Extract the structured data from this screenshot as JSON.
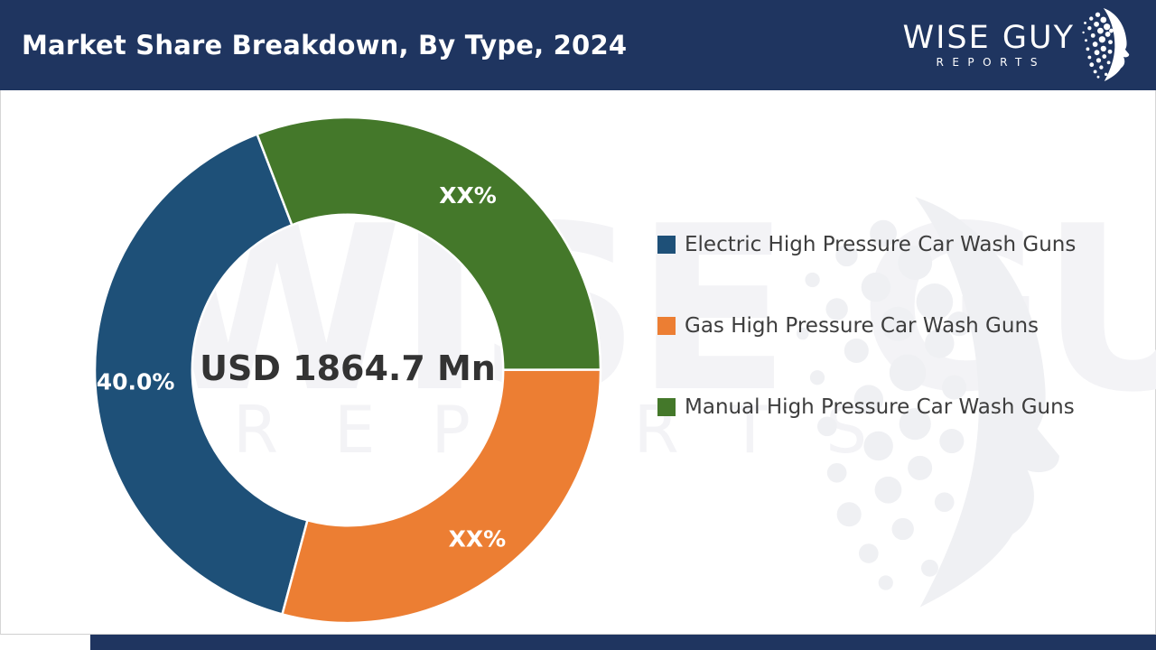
{
  "header": {
    "title": "Market Share Breakdown, By Type, 2024",
    "logo": {
      "line1": "WISE GUY",
      "line2": "REPORTS",
      "icon": "face-profile-icon"
    }
  },
  "watermark": {
    "line1": "WISE GUY",
    "line2": "REPORTS",
    "icon": "face-profile-icon"
  },
  "chart_data": {
    "type": "pie",
    "subtype": "donut",
    "title": "Market Share Breakdown, By Type, 2024",
    "center_label": "USD 1864.7 Mn",
    "start_angle": 111,
    "counterclockwise": true,
    "inner_radius_ratio": 0.615,
    "legend_position": "right",
    "series": [
      {
        "name": "Electric High Pressure Car Wash Guns",
        "value": 40.0,
        "display_label": "40.0%",
        "color": "#1e5078"
      },
      {
        "name": "Gas High Pressure Car Wash Guns",
        "value": 29.2,
        "display_label": "XX%",
        "color": "#ec7e33"
      },
      {
        "name": "Manual High Pressure Car Wash Guns",
        "value": 30.8,
        "display_label": "XX%",
        "color": "#44782a"
      }
    ]
  },
  "colors": {
    "header_bg": "#1f3560",
    "footer_bg": "#1f3560",
    "watermark": "#f3f3f6",
    "center_text": "#333333",
    "legend_text": "#3d3d3d"
  }
}
